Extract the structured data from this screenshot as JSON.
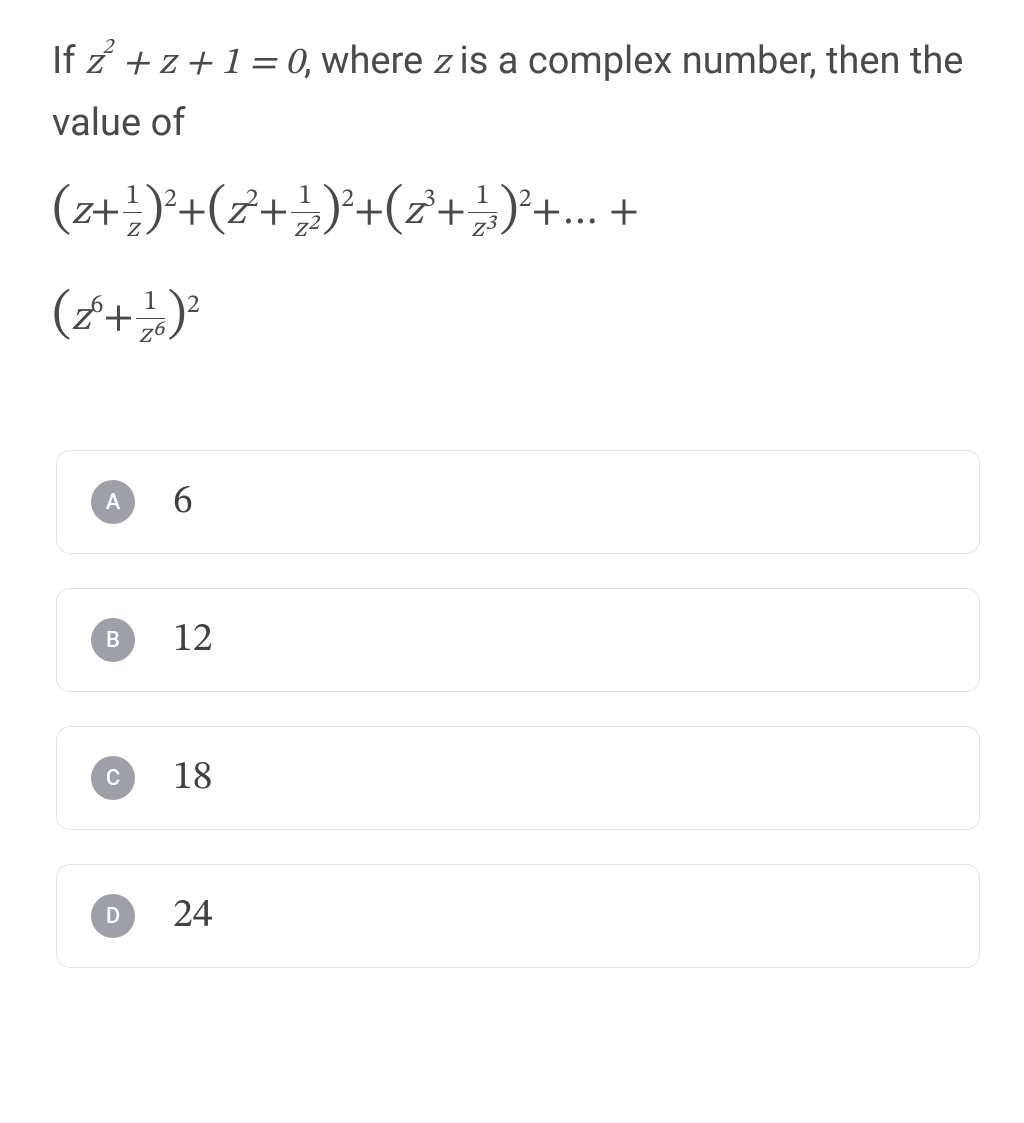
{
  "question": {
    "intro_parts": {
      "p1": "If ",
      "eq_inline": "z² + z + 1 = 0",
      "p2": ", where ",
      "var": "z",
      "p3": " is a complex number, then the value of"
    },
    "terms": [
      {
        "base": "z",
        "exp": "",
        "frac_den": "z",
        "outer_exp": "2"
      },
      {
        "base": "z",
        "exp": "2",
        "frac_den": "z²",
        "outer_exp": "2"
      },
      {
        "base": "z",
        "exp": "3",
        "frac_den": "z³",
        "outer_exp": "2"
      }
    ],
    "ellipsis": "+… +",
    "last_term": {
      "base": "z",
      "exp": "6",
      "frac_den": "z⁶",
      "outer_exp": "2"
    },
    "frac_num": "1",
    "plus": " + "
  },
  "options": [
    {
      "letter": "A",
      "value": "6"
    },
    {
      "letter": "B",
      "value": "12"
    },
    {
      "letter": "C",
      "value": "18"
    },
    {
      "letter": "D",
      "value": "24"
    }
  ],
  "style": {
    "text_color": "#4a4a4a",
    "option_border": "#e4e4e7",
    "badge_bg": "#9da0a7",
    "badge_fg": "#ffffff",
    "background": "#ffffff",
    "question_fontsize": 38,
    "math_fontsize": 42,
    "option_fontsize": 40,
    "badge_fontsize": 22,
    "border_radius": 14
  }
}
